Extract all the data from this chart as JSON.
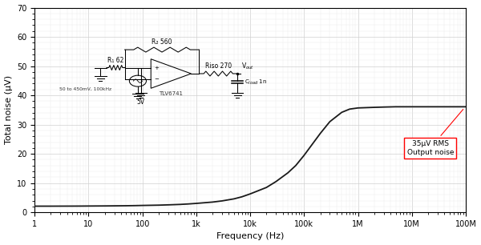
{
  "xlabel": "Frequency (Hz)",
  "ylabel": "Total noise (μV)",
  "xlim_log": [
    1,
    100000000.0
  ],
  "ylim": [
    0,
    70
  ],
  "yticks": [
    0,
    10,
    20,
    30,
    40,
    50,
    60,
    70
  ],
  "xtick_labels": [
    "1",
    "10",
    "100",
    "1k",
    "10k",
    "100k",
    "1M",
    "10M",
    "100M"
  ],
  "xtick_values": [
    1,
    10,
    100,
    1000,
    10000,
    100000,
    1000000,
    10000000,
    100000000
  ],
  "annotation_text": "35μV RMS\nOutput noise",
  "line_color": "#1a1a1a",
  "grid_color": "#d0d0d0",
  "minor_grid_color": "#e8e8e8",
  "background_color": "#ffffff",
  "curve_data_x": [
    1,
    2,
    3,
    5,
    7,
    10,
    20,
    30,
    50,
    70,
    100,
    200,
    300,
    500,
    700,
    1000,
    2000,
    3000,
    5000,
    7000,
    10000,
    20000,
    30000,
    50000,
    70000,
    100000,
    200000,
    300000,
    500000,
    700000,
    1000000,
    2000000,
    3000000,
    5000000,
    7000000,
    10000000,
    20000000,
    50000000,
    100000000
  ],
  "curve_data_y": [
    2.1,
    2.1,
    2.11,
    2.12,
    2.13,
    2.15,
    2.18,
    2.21,
    2.25,
    2.29,
    2.35,
    2.45,
    2.55,
    2.7,
    2.85,
    3.05,
    3.5,
    3.9,
    4.6,
    5.3,
    6.3,
    8.5,
    10.5,
    13.5,
    16.0,
    19.5,
    27.0,
    31.0,
    34.2,
    35.3,
    35.7,
    35.9,
    36.0,
    36.1,
    36.1,
    36.1,
    36.1,
    36.1,
    36.1
  ]
}
